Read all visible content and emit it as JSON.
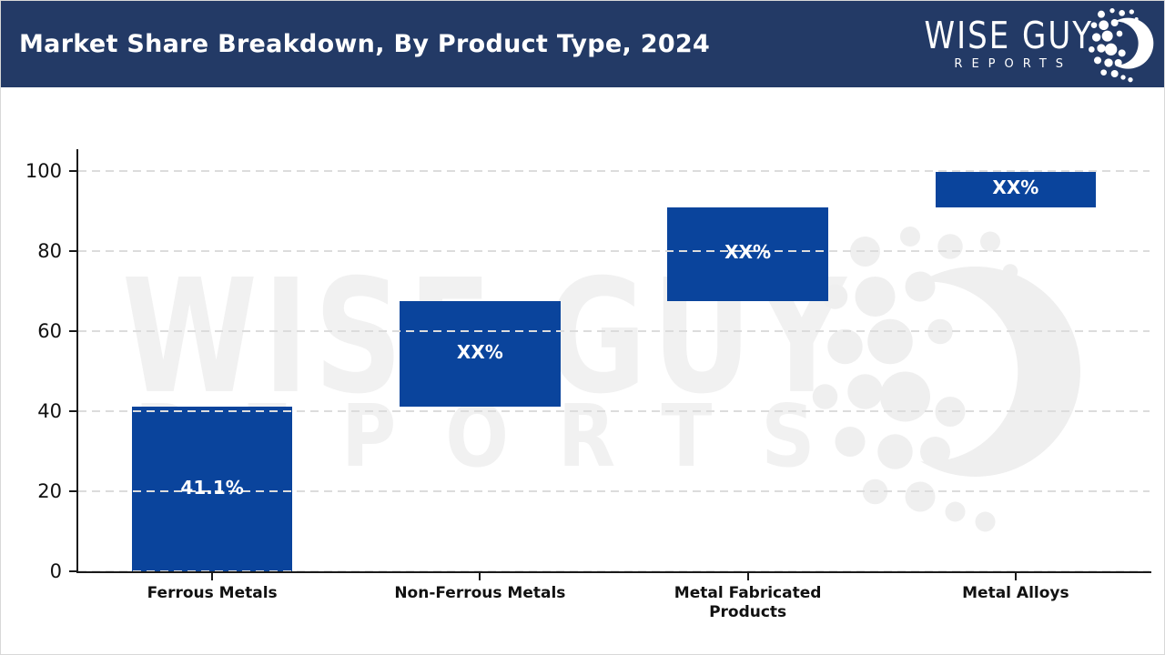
{
  "header": {
    "title": "Market Share Breakdown, By Product Type, 2024",
    "bg_color": "#233a66",
    "logo": {
      "brand_line1": "WISE GUY",
      "brand_line2": "REPORTS"
    }
  },
  "watermark": {
    "line1": "WISE GUY",
    "line2": "REPORTS"
  },
  "chart_data": {
    "type": "bar",
    "subtype": "waterfall",
    "title": "Market Share Breakdown, By Product Type, 2024",
    "categories": [
      "Ferrous Metals",
      "Non-Ferrous Metals",
      "Metal Fabricated Products",
      "Metal Alloys"
    ],
    "series": [
      {
        "name": "Market Share",
        "segments": [
          {
            "start": 0,
            "end": 41.1,
            "label": "41.1%"
          },
          {
            "start": 41.1,
            "end": 67.5,
            "label": "XX%"
          },
          {
            "start": 67.5,
            "end": 91.0,
            "label": "XX%"
          },
          {
            "start": 91.0,
            "end": 99.8,
            "label": "XX%"
          }
        ]
      }
    ],
    "xlabel": "",
    "ylabel": "",
    "yticks": [
      0,
      20,
      40,
      60,
      80,
      100
    ],
    "ylim": [
      0,
      105
    ],
    "grid": true,
    "grid_axis": "y",
    "grid_style": "dashed",
    "grid_color": "#dcdcdc",
    "legend": false,
    "bar_color": "#0a449c",
    "bar_label_color": "#ffffff",
    "axis_color": "#1a1a1a"
  }
}
